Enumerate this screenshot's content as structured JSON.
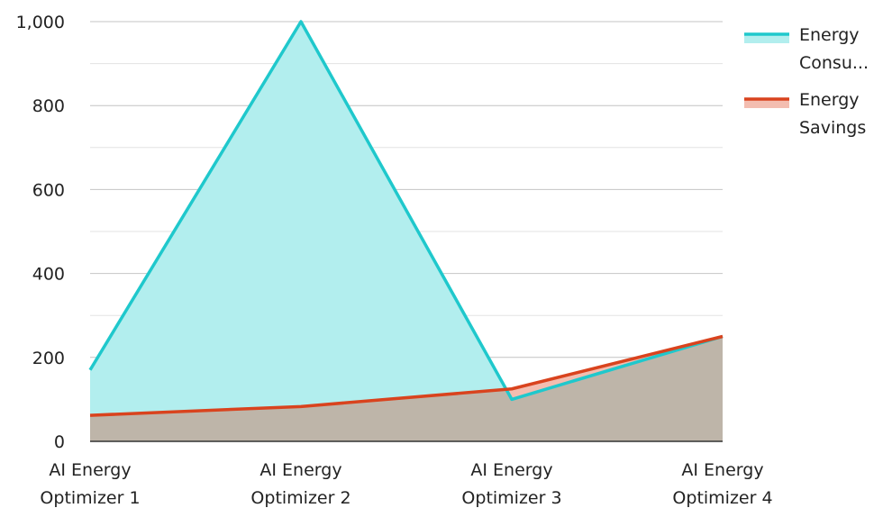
{
  "chart_data": {
    "type": "area",
    "categories": [
      [
        "AI Energy",
        "Optimizer 1"
      ],
      [
        "AI Energy",
        "Optimizer 2"
      ],
      [
        "AI Energy",
        "Optimizer 3"
      ],
      [
        "AI Energy",
        "Optimizer 4"
      ]
    ],
    "series": [
      {
        "name": "Energy Consumption",
        "legend_label_lines": [
          "Energy",
          "Consu..."
        ],
        "values": [
          170,
          1000,
          100,
          250
        ],
        "line_color": "#1FC8CC",
        "fill_color": "#B2EEEE"
      },
      {
        "name": "Energy Savings",
        "legend_label_lines": [
          "Energy",
          "Savings"
        ],
        "values": [
          62,
          83,
          125,
          250
        ],
        "line_color": "#D9431E",
        "fill_color": "#F3BDB0"
      }
    ],
    "overlap_fill_color": "#BEB5A9",
    "ylim": [
      0,
      1000
    ],
    "yticks": [
      "0",
      "200",
      "400",
      "600",
      "800",
      "1,000"
    ],
    "ytick_values": [
      0,
      200,
      400,
      600,
      800,
      1000
    ],
    "grid": true,
    "legend_position": "right",
    "title": "",
    "xlabel": "",
    "ylabel": ""
  }
}
